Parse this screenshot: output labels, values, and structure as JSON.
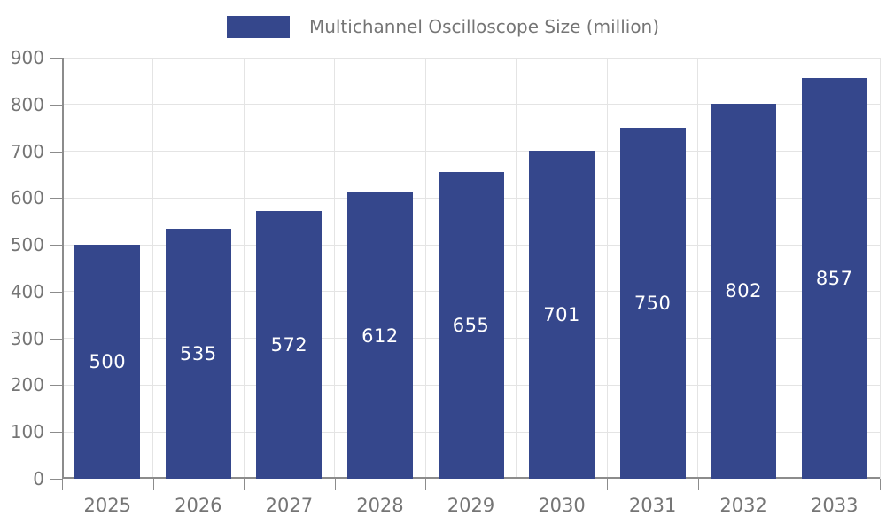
{
  "legend": {
    "items": [
      {
        "label": "Multichannel Oscilloscope Size (million)",
        "color": "#35478c"
      }
    ]
  },
  "chart_data": {
    "type": "bar",
    "title": "Multichannel Oscilloscope Size (million)",
    "categories": [
      "2025",
      "2026",
      "2027",
      "2028",
      "2029",
      "2030",
      "2031",
      "2032",
      "2033"
    ],
    "values": [
      500,
      535,
      572,
      612,
      655,
      701,
      750,
      802,
      857
    ],
    "series": [
      {
        "name": "Multichannel Oscilloscope Size (million)",
        "values": [
          500,
          535,
          572,
          612,
          655,
          701,
          750,
          802,
          857
        ]
      }
    ],
    "xlabel": "",
    "ylabel": "",
    "ylim": [
      0,
      900
    ],
    "yticks": [
      0,
      100,
      200,
      300,
      400,
      500,
      600,
      700,
      800,
      900
    ],
    "grid": true,
    "legend_position": "top",
    "colors": {
      "bar": "#35478c",
      "value_label": "#ffffff",
      "axis": "#8c8c8c",
      "grid": "#e4e4e4",
      "tick_text": "#757575"
    }
  }
}
